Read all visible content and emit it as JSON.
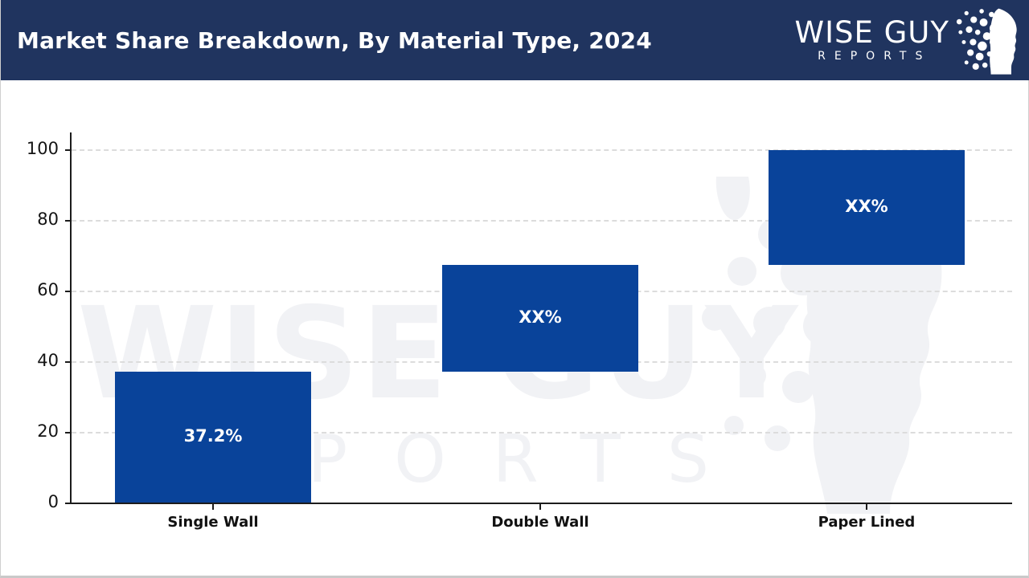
{
  "header": {
    "title": "Market Share Breakdown, By Material Type, 2024",
    "bg_color": "#20345f",
    "logo": {
      "line1": "WISE GUY",
      "line2": "REPORTS"
    }
  },
  "watermark": {
    "line1": "WISE GUY",
    "line2": "REPORTS"
  },
  "chart_data": {
    "type": "bar",
    "subtype": "floating-waterfall",
    "title": "Market Share Breakdown, By Material Type, 2024",
    "categories": [
      "Single Wall",
      "Double Wall",
      "Paper Lined"
    ],
    "segments": [
      {
        "category": "Single Wall",
        "start": 0,
        "end": 37.2,
        "label": "37.2%"
      },
      {
        "category": "Double Wall",
        "start": 37.2,
        "end": 67.4,
        "label": "XX%"
      },
      {
        "category": "Paper Lined",
        "start": 67.4,
        "end": 100,
        "label": "XX%"
      }
    ],
    "xlabel": "",
    "ylabel": "",
    "ylim": [
      0,
      100
    ],
    "y_ticks": [
      0,
      20,
      40,
      60,
      80,
      100
    ],
    "grid": "horizontal-dashed",
    "legend": "none",
    "bar_color": "#09439a",
    "bar_label_color": "#ffffff",
    "axis_color": "#1c1c1c",
    "grid_color": "#dcdcdc"
  }
}
